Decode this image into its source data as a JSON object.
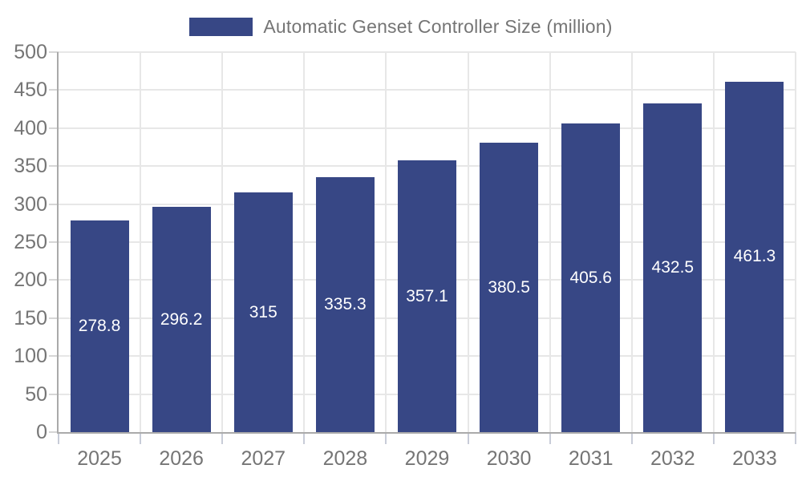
{
  "chart_data": {
    "type": "bar",
    "title": "Automatic Genset Controller Size (million)",
    "legend": {
      "label": "Automatic Genset Controller Size (million)",
      "position": "top-center",
      "swatch_color": "#374785"
    },
    "categories": [
      "2025",
      "2026",
      "2027",
      "2028",
      "2029",
      "2030",
      "2031",
      "2032",
      "2033"
    ],
    "values": [
      278.8,
      296.2,
      315,
      335.3,
      357.1,
      380.5,
      405.6,
      432.5,
      461.3
    ],
    "xlabel": "",
    "ylabel": "",
    "ylim": [
      0,
      500
    ],
    "yticks": [
      0,
      50,
      100,
      150,
      200,
      250,
      300,
      350,
      400,
      450,
      500
    ],
    "grid": true,
    "bar_label_position": "inside-center",
    "colors": {
      "bar": "#374785",
      "bar_value_label": "#ffffff",
      "axis_line": "#aaaaaa",
      "y_tick": "#d6d6d6",
      "x_tick": "#c8ccd8",
      "gridline": "#e7e7e7",
      "axis_text": "#757575",
      "background": "#ffffff"
    }
  }
}
